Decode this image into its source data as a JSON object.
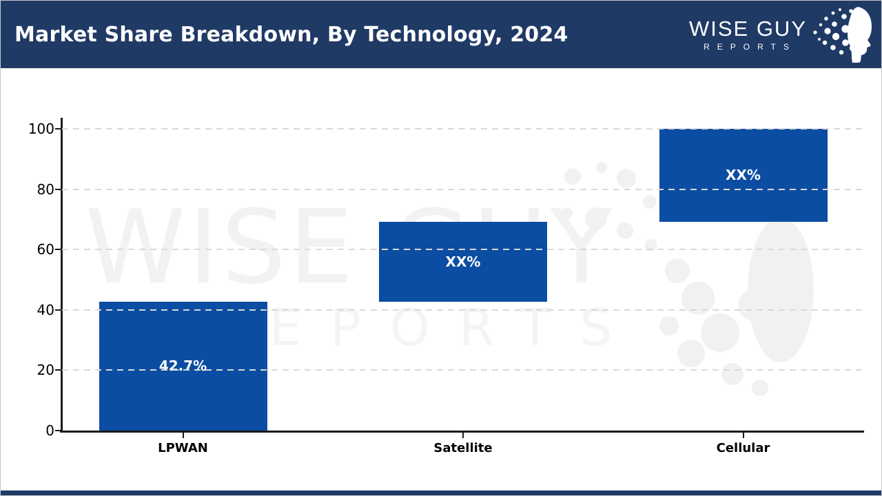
{
  "header": {
    "title": "Market Share Breakdown, By Technology, 2024",
    "background_color": "#203a66",
    "logo": {
      "line1": "WISE GUY",
      "line2": "REPORTS",
      "icon": "dotted-face-profile"
    }
  },
  "watermark": {
    "line1": "WISE GUY",
    "line2": "REPORTS"
  },
  "chart_data": {
    "type": "bar",
    "subtype": "waterfall",
    "title": "Market Share Breakdown, By Technology, 2024",
    "xlabel": "",
    "ylabel": "",
    "categories": [
      "LPWAN",
      "Satellite",
      "Cellular"
    ],
    "segments": [
      {
        "category": "LPWAN",
        "start": 0,
        "end": 42.7,
        "value": 42.7,
        "label": "42.7%"
      },
      {
        "category": "Satellite",
        "start": 42.7,
        "end": 69.2,
        "value": 26.5,
        "label": "XX%"
      },
      {
        "category": "Cellular",
        "start": 69.2,
        "end": 100,
        "value": 30.8,
        "label": "XX%"
      }
    ],
    "y_ticks": [
      0,
      20,
      40,
      60,
      80,
      100
    ],
    "ylim": [
      0,
      104
    ],
    "bar_color": "#0b4da2",
    "bar_label_color": "#ffffff",
    "grid": {
      "show": true,
      "style": "dashed",
      "color": "#d9d9d9",
      "above_bars": true
    },
    "axis_color": "#1a1a1a",
    "legend": {
      "show": false
    }
  }
}
